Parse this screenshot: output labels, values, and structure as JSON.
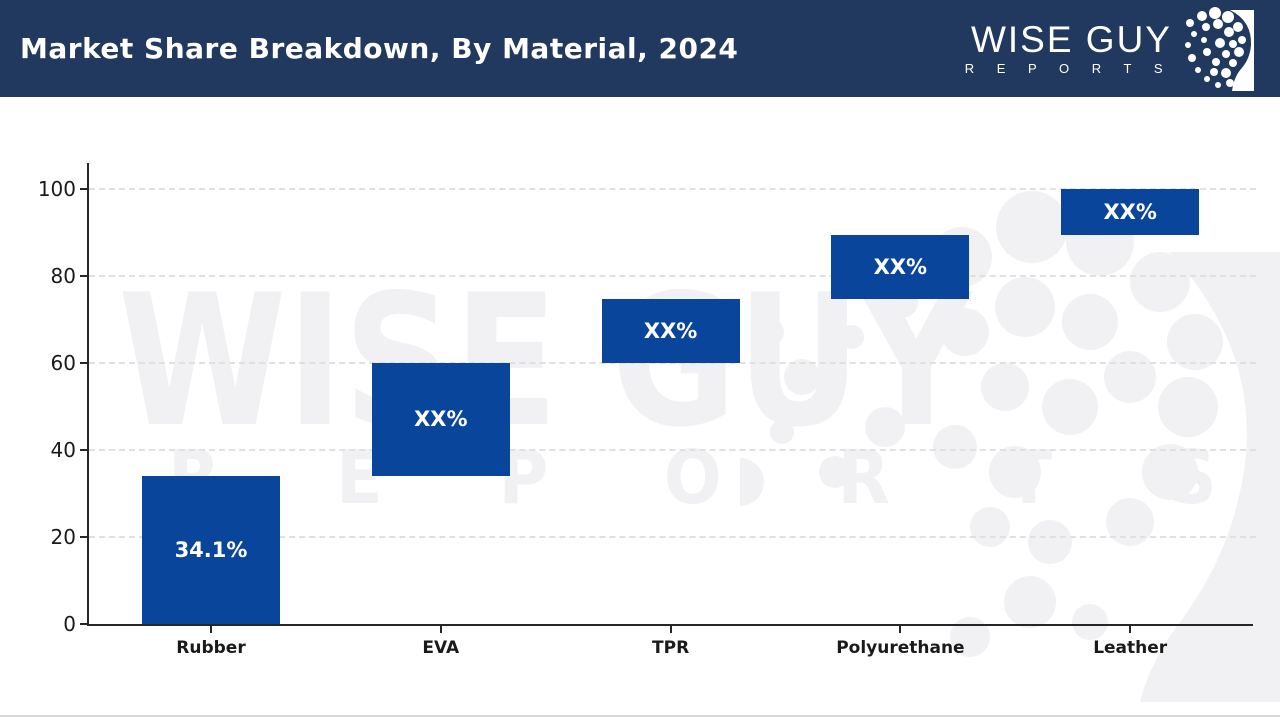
{
  "header": {
    "title": "Market Share Breakdown, By Material, 2024",
    "logo": {
      "line1": "WISE GUY",
      "line2": "R E P O R T S"
    }
  },
  "watermark": {
    "line1": "WISE GUY",
    "line2": "R E P O R T S"
  },
  "colors": {
    "header_bg": "#21395f",
    "bar_blue": "#0a459c",
    "axis": "#262626",
    "grid": "#e0e0e0",
    "watermark": "#f1f1f4",
    "label_text": "#1a1a1a",
    "bar_label_text": "#ffffff"
  },
  "chart_data": {
    "type": "bar",
    "subtype": "waterfall",
    "title": "Market Share Breakdown, By Material, 2024",
    "categories": [
      "Rubber",
      "EVA",
      "TPR",
      "Polyurethane",
      "Leather"
    ],
    "segments": [
      {
        "category": "Rubber",
        "start": 0,
        "end": 34.1,
        "label": "34.1%"
      },
      {
        "category": "EVA",
        "start": 34.1,
        "end": 60.0,
        "label": "XX%"
      },
      {
        "category": "TPR",
        "start": 60.0,
        "end": 74.7,
        "label": "XX%"
      },
      {
        "category": "Polyurethane",
        "start": 74.7,
        "end": 89.4,
        "label": "XX%"
      },
      {
        "category": "Leather",
        "start": 89.4,
        "end": 100.0,
        "label": "XX%"
      }
    ],
    "y_ticks": [
      0,
      20,
      40,
      60,
      80,
      100
    ],
    "ylim": [
      0,
      100
    ],
    "xlabel": "",
    "ylabel": "",
    "grid": "horizontal-dashed",
    "legend": "none",
    "bar_color": "#0a459c"
  }
}
